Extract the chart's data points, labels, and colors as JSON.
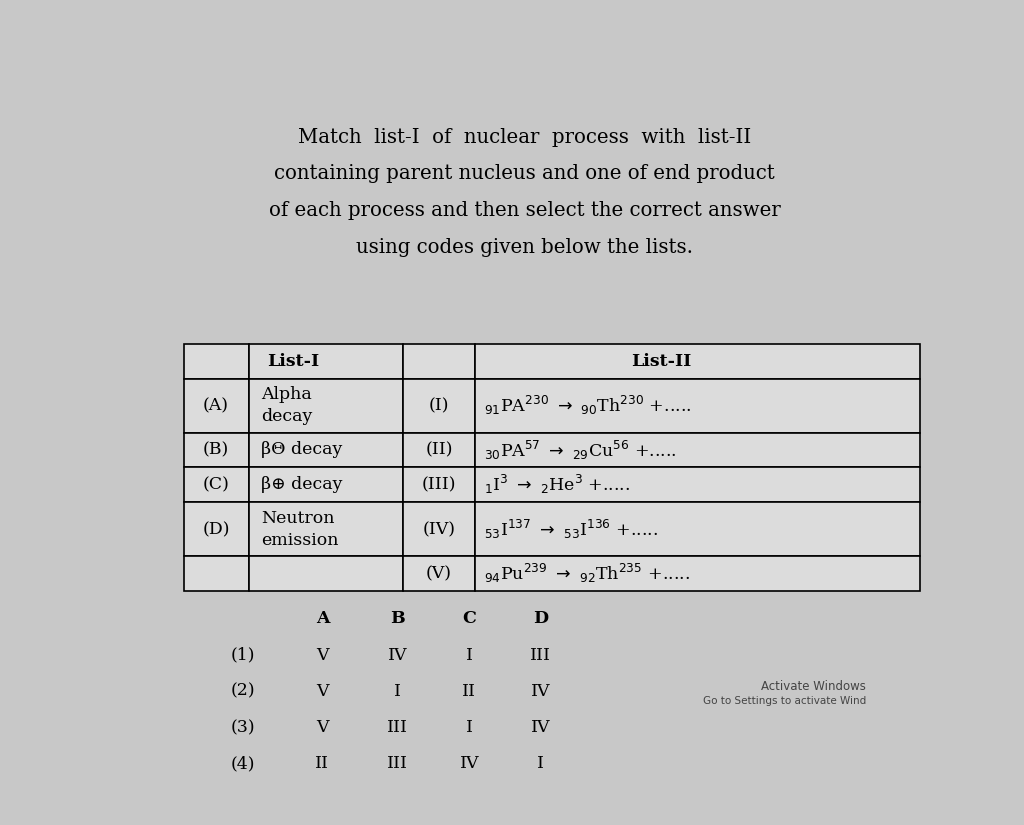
{
  "title": "Match  list-I  of  nuclear  process  with  list-II\ncontaining parent nucleus and one of end product\nof each process and then select the correct answer\nusing codes given below the lists.",
  "bg_color": "#c8c8c8",
  "cell_color": "#dcdcdc",
  "line_color": "black",
  "list1_header": "List-I",
  "list2_header": "List-II",
  "list1_items": [
    {
      "key": "(A)",
      "value": "Alpha\ndecay"
    },
    {
      "key": "(B)",
      "value": "βΘ decay"
    },
    {
      "key": "(C)",
      "value": "β⊕ decay"
    },
    {
      "key": "(D)",
      "value": "Neutron\nemission"
    }
  ],
  "list2_items": [
    {
      "key": "(I)",
      "value": "$_{91}$PA$^{230}$ $\\rightarrow$ $_{90}$Th$^{230}$ +....."
    },
    {
      "key": "(II)",
      "value": "$_{30}$PA$^{57}$ $\\rightarrow$ $_{29}$Cu$^{56}$ +....."
    },
    {
      "key": "(III)",
      "value": "$_{1}$I$^{3}$ $\\rightarrow$ $_{2}$He$^{3}$ +....."
    },
    {
      "key": "(IV)",
      "value": "$_{53}$I$^{137}$ $\\rightarrow$ $_{53}$I$^{136}$ +....."
    },
    {
      "key": "(V)",
      "value": "$_{94}$Pu$^{239}$ $\\rightarrow$ $_{92}$Th$^{235}$ +....."
    }
  ],
  "answer_header": [
    "A",
    "B",
    "C",
    "D"
  ],
  "answers": [
    {
      "num": "(1)",
      "vals": [
        "V",
        "IV",
        "I",
        "III"
      ]
    },
    {
      "num": "(2)",
      "vals": [
        "V",
        "I",
        "II",
        "IV"
      ]
    },
    {
      "num": "(3)",
      "vals": [
        "V",
        "III",
        "I",
        "IV"
      ]
    },
    {
      "num": "(4)",
      "vals": [
        "II",
        "III",
        "IV",
        "I"
      ]
    }
  ],
  "watermark_line1": "Activate Windows",
  "watermark_line2": "Go to Settings to activate Wind"
}
